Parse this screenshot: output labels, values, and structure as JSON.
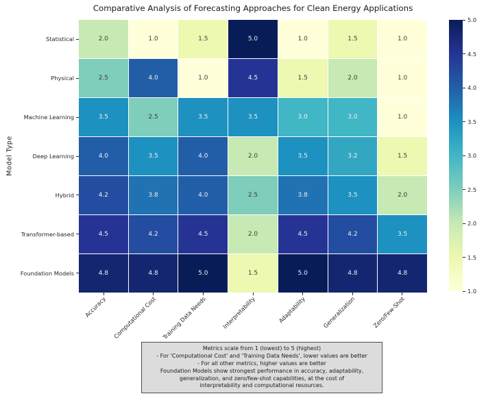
{
  "chart_data": {
    "type": "heatmap",
    "title": "Comparative Analysis of Forecasting Approaches for Clean Energy Applications",
    "ylabel": "Model Type",
    "rows": [
      "Statistical",
      "Physical",
      "Machine Learning",
      "Deep Learning",
      "Hybrid",
      "Transformer-based",
      "Foundation Models"
    ],
    "columns": [
      "Accuracy",
      "Computational Cost",
      "Training Data Needs",
      "Interpretability",
      "Adaptability",
      "Generalization",
      "Zero/Few-Shot"
    ],
    "values": [
      [
        2.0,
        1.0,
        1.5,
        5.0,
        1.0,
        1.5,
        1.0
      ],
      [
        2.5,
        4.0,
        1.0,
        4.5,
        1.5,
        2.0,
        1.0
      ],
      [
        3.5,
        2.5,
        3.5,
        3.5,
        3.0,
        3.0,
        1.0
      ],
      [
        4.0,
        3.5,
        4.0,
        2.0,
        3.5,
        3.2,
        1.5
      ],
      [
        4.2,
        3.8,
        4.0,
        2.5,
        3.8,
        3.5,
        2.0
      ],
      [
        4.5,
        4.2,
        4.5,
        2.0,
        4.5,
        4.2,
        3.5
      ],
      [
        4.8,
        4.8,
        5.0,
        1.5,
        5.0,
        4.8,
        4.8
      ]
    ],
    "vmin": 1.0,
    "vmax": 5.0,
    "colormap": "YlGnBu",
    "colormap_stops": [
      "#ffffd9",
      "#edf8b1",
      "#c7e9b4",
      "#7fcdbb",
      "#41b6c4",
      "#1d91c0",
      "#225ea8",
      "#253494",
      "#081d58"
    ],
    "colorbar_ticks": [
      "1.0",
      "1.5",
      "2.0",
      "2.5",
      "3.0",
      "3.5",
      "4.0",
      "4.5",
      "5.0"
    ],
    "legend_position": "right-colorbar",
    "grid": "white-gridlines",
    "annotation": "Metrics scale from 1 (lowest) to 5 (highest)\n- For 'Computational Cost' and 'Training Data Needs', lower values are better\n- For all other metrics, higher values are better\nFoundation Models show strongest performance in accuracy, adaptability,\ngeneralization, and zero/few-shot capabilities, at the cost of\ninterpretability and computational resources.",
    "colors": {
      "cell_text_light": "#f0f0f0",
      "cell_text_dark": "#3b3b3b",
      "annotation_bg": "#dcdcdc",
      "annotation_border": "#4d4d4d",
      "axis_text": "#262626",
      "light_text_threshold": 3.0
    }
  }
}
